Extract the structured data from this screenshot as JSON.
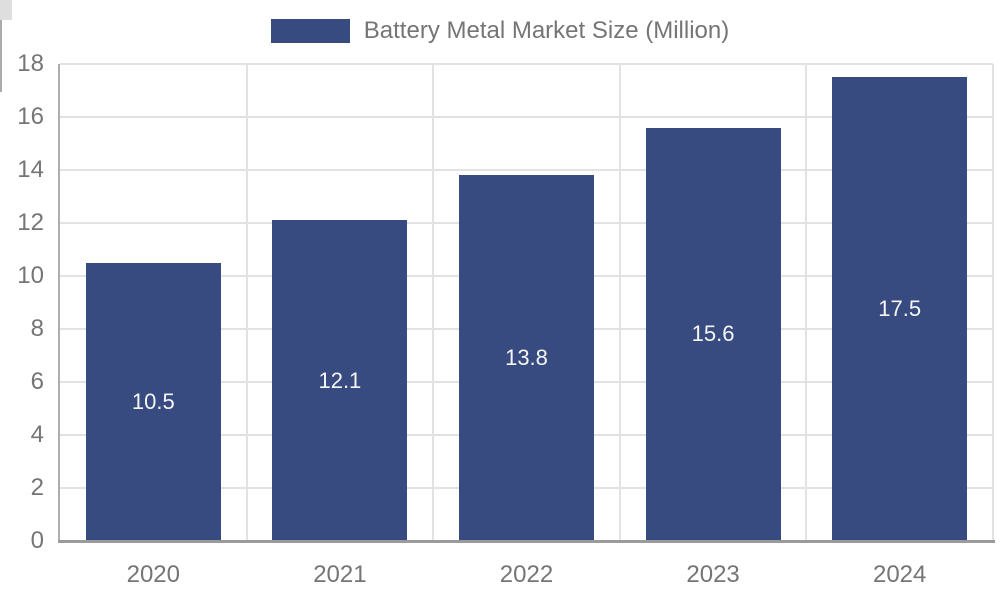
{
  "chart_data": {
    "type": "bar",
    "title": "Battery Metal Market Size (Million)",
    "legend": {
      "label": "Battery Metal Market Size (Million)",
      "position": "top-center"
    },
    "categories": [
      "2020",
      "2021",
      "2022",
      "2023",
      "2024"
    ],
    "series": [
      {
        "name": "Battery Metal Market Size (Million)",
        "values": [
          10.5,
          12.1,
          13.8,
          15.6,
          17.5
        ],
        "value_labels": [
          "10.5",
          "12.1",
          "13.8",
          "15.6",
          "17.5"
        ]
      }
    ],
    "xlabel": "",
    "ylabel": "",
    "ylim": [
      0,
      18
    ],
    "ytick_step": 2,
    "yticks": [
      0,
      2,
      4,
      6,
      8,
      10,
      12,
      14,
      16,
      18
    ],
    "grid": true,
    "value_label_position": "inside-center",
    "colors": {
      "bar": "#384b81",
      "axis_text": "#757575",
      "value_text": "#f5f5f5",
      "gridline": "#e2e2e2",
      "axis_line_x": "#9b9b9b",
      "axis_line_y": "#adadad",
      "tick_x": "#ababab",
      "tick_y": "#dedede",
      "background": "#ffffff"
    }
  }
}
